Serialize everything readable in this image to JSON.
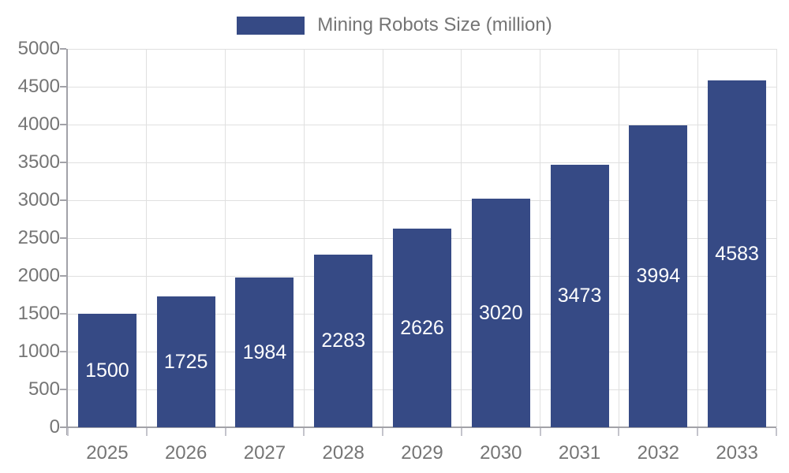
{
  "legend": {
    "label": "Mining Robots Size (million)"
  },
  "chart_data": {
    "type": "bar",
    "title": "Mining Robots Size (million)",
    "categories": [
      "2025",
      "2026",
      "2027",
      "2028",
      "2029",
      "2030",
      "2031",
      "2032",
      "2033"
    ],
    "series": [
      {
        "name": "Mining Robots Size (million)",
        "values": [
          1500,
          1725,
          1984,
          2283,
          2626,
          3020,
          3473,
          3994,
          4583
        ]
      }
    ],
    "xlabel": "",
    "ylabel": "",
    "ylim": [
      0,
      5000
    ],
    "ytick_step": 500,
    "yticks": [
      0,
      500,
      1000,
      1500,
      2000,
      2500,
      3000,
      3500,
      4000,
      4500,
      5000
    ],
    "grid": true,
    "legend_position": "top-center",
    "value_labels": "inside-center",
    "colors": {
      "bar": "#364a85",
      "value_label": "#ffffff",
      "grid_line": "#e0e0e0",
      "axis_line": "#a2a2a8",
      "x_tick": "#c4c4cc",
      "tick_label": "#757575",
      "background": "#ffffff"
    }
  }
}
